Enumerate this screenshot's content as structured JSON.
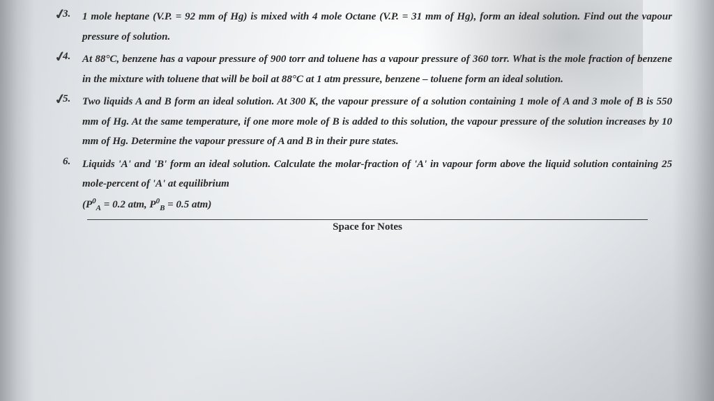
{
  "questions": [
    {
      "number": "3.",
      "hasTick": true,
      "text": "1 mole heptane (V.P. = 92 mm of Hg) is mixed with 4 mole Octane (V.P. = 31 mm of Hg), form an ideal solution. Find out the vapour pressure of solution."
    },
    {
      "number": "4.",
      "hasTick": true,
      "text": "At 88°C, benzene has a vapour pressure of 900 torr and toluene has a vapour pressure of 360 torr. What is the mole fraction of benzene in the mixture with toluene that will be boil at 88°C at 1 atm pressure, benzene – toluene form an ideal solution."
    },
    {
      "number": "5.",
      "hasTick": true,
      "text": "Two liquids A and B form an ideal solution. At 300 K, the vapour pressure of a solution containing 1 mole of A and 3 mole of B is 550 mm of Hg. At the same temperature, if one more mole of B is added to this solution, the vapour pressure of the solution increases by 10 mm of Hg. Determine the vapour pressure of A and B in their pure states."
    },
    {
      "number": "6.",
      "hasTick": false,
      "text": "Liquids 'A' and 'B' form an ideal solution. Calculate the molar-fraction of 'A' in vapour form above the liquid solution containing 25 mole-percent of 'A' at equilibrium"
    }
  ],
  "formula": {
    "pa_label": "P",
    "pa_sub": "A",
    "pa_sup": "0",
    "pa_val": " = 0.2 atm, ",
    "pb_label": "P",
    "pb_sub": "B",
    "pb_sup": "0",
    "pb_val": " = 0.5 atm"
  },
  "notesTitle": "Space for Notes",
  "styling": {
    "fontSize": 15,
    "fontWeight": "bold",
    "fontStyle": "italic",
    "textColor": "#2a2a2a",
    "lineHeight": 1.9,
    "pageWidth": 1024,
    "pageHeight": 576,
    "backgroundGradient": [
      "#d8dce0",
      "#e8ebee",
      "#f0f2f4",
      "#e5e8eb",
      "#c8ccd0"
    ]
  }
}
